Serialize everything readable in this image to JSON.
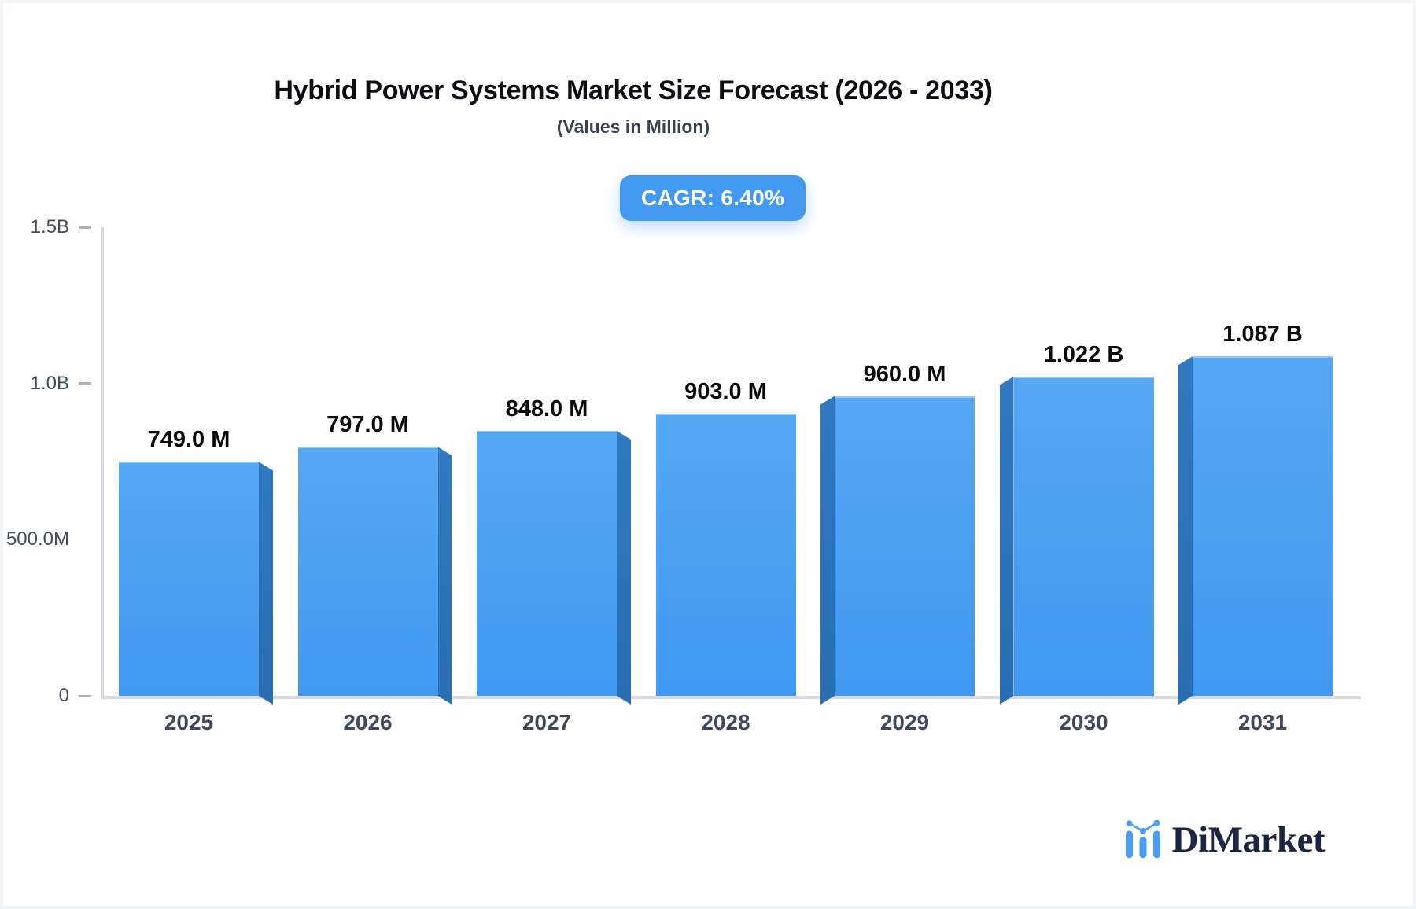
{
  "page": {
    "title": "Hybrid Power Systems Market Size Forecast (2026 - 2033)",
    "subtitle": "(Values in Million)",
    "cagr_badge": "CAGR: 6.40%"
  },
  "chart_data": {
    "type": "bar",
    "title": "Hybrid Power Systems Market Size Forecast (2026 - 2033)",
    "subtitle": "(Values in Million)",
    "cagr_percent": 6.4,
    "categories": [
      "2025",
      "2026",
      "2027",
      "2028",
      "2029",
      "2030",
      "2031"
    ],
    "values": [
      749,
      797,
      848,
      903,
      960,
      1022,
      1087
    ],
    "value_unit": "millions",
    "value_labels": [
      "749.0 M",
      "797.0 M",
      "848.0 M",
      "903.0 M",
      "960.0 M",
      "1.022 B",
      "1.087 B"
    ],
    "ylim": [
      0,
      1500
    ],
    "yticks": [
      {
        "label": "1.5B",
        "value": 1500,
        "dash": true
      },
      {
        "label": "1.0B",
        "value": 1000,
        "dash": true
      },
      {
        "label": "500.0M",
        "value": 500,
        "dash": false
      },
      {
        "label": "0",
        "value": 0,
        "dash": true
      }
    ],
    "grid": "off",
    "legend": "none",
    "style": "3d-bars-center-perspective",
    "colors": {
      "bar_front": "#4A9FF1",
      "bar_side": "#2E74BA",
      "badge_background": "#4398F0",
      "badge_text": "#FFFFFF",
      "axis": "#D6DAE0",
      "tick_text": "#414D5E"
    }
  },
  "logo": {
    "text": "DiMarket",
    "icon": "mini-bar-line-chart-icon",
    "icon_color": "#4A9FF5",
    "text_color": "#1A2642"
  }
}
